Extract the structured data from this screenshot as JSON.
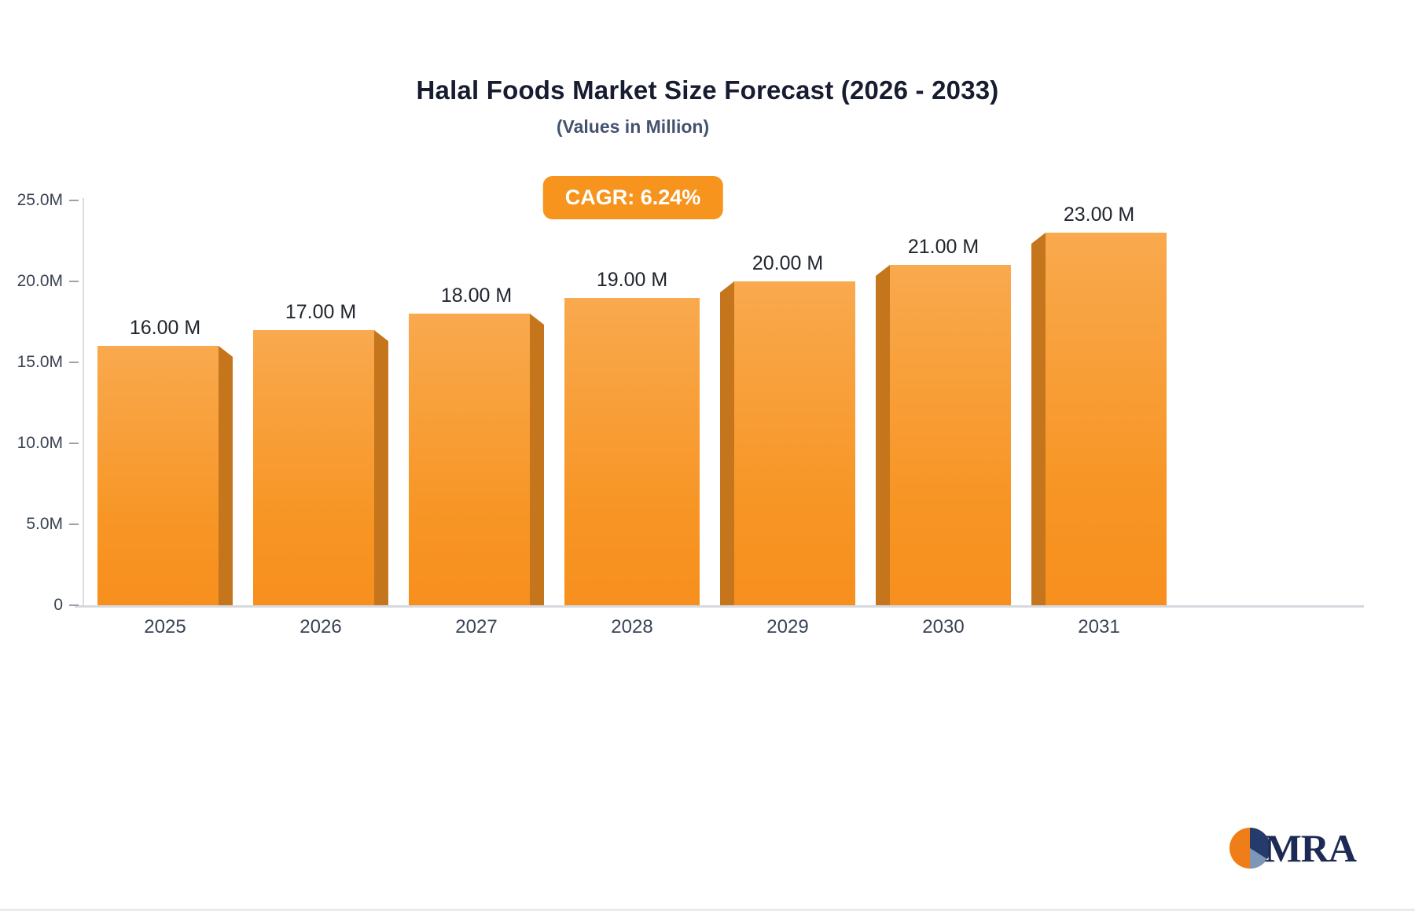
{
  "logo": {
    "text": "MRA"
  },
  "colors": {
    "bar_fill": "#F79420",
    "bar_side": "#C5761C",
    "badge_bg": "#F7941E",
    "title_text": "#171C30",
    "axis_text": "#3A4354"
  },
  "chart_data": {
    "type": "bar",
    "title": "Halal Foods Market Size Forecast (2026 - 2033)",
    "subtitle": "(Values in Million)",
    "annotation": "CAGR: 6.24%",
    "unit": "Million",
    "categories": [
      "2025",
      "2026",
      "2027",
      "2028",
      "2029",
      "2030",
      "2031"
    ],
    "values": [
      16,
      17,
      18,
      19,
      20,
      21,
      23
    ],
    "value_labels": [
      "16.00 M",
      "17.00 M",
      "18.00 M",
      "19.00 M",
      "20.00 M",
      "21.00 M",
      "23.00 M"
    ],
    "ylim": [
      0,
      25
    ],
    "y_ticks": [
      {
        "label": "25.0M",
        "value": 25
      },
      {
        "label": "20.0M",
        "value": 20
      },
      {
        "label": "15.0M",
        "value": 15
      },
      {
        "label": "10.0M",
        "value": 10
      },
      {
        "label": "5.0M",
        "value": 5
      },
      {
        "label": "0",
        "value": 0
      }
    ],
    "grid": false,
    "legend": false,
    "bar_style": "3d-perspective-toward-center"
  }
}
